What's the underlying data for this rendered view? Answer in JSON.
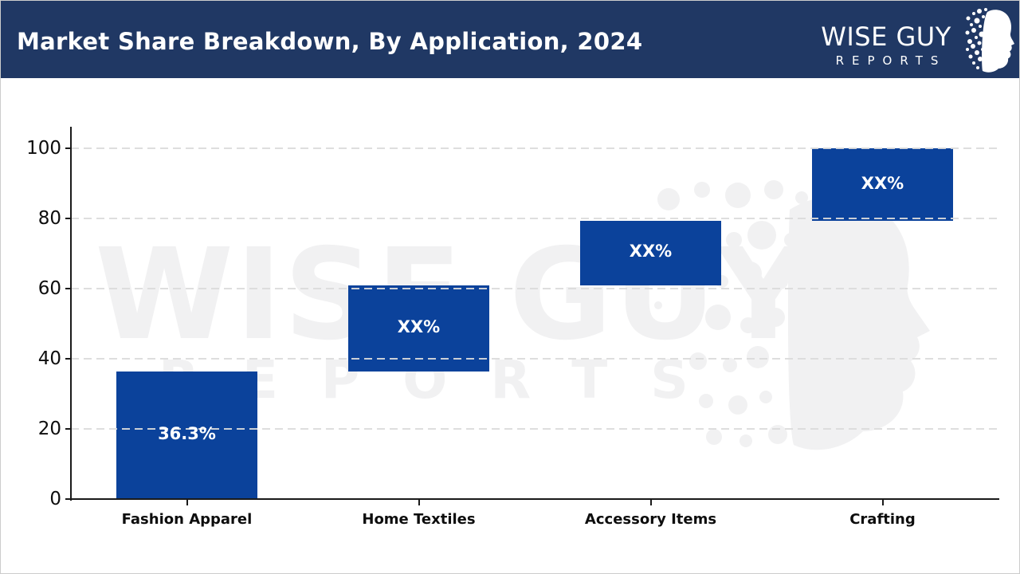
{
  "header": {
    "title": "Market Share Breakdown, By Application, 2024",
    "logo": {
      "line1": "WISE GUY",
      "line2": "REPORTS"
    }
  },
  "watermark": {
    "line1": "WISE GUY",
    "line2": "REPORTS"
  },
  "colors": {
    "header_bg": "#203864",
    "bar": "#0b429b",
    "grid": "#dbdbdb",
    "axis": "#1a1a1a",
    "tick_label": "#0d0d0d",
    "bar_label": "#ffffff",
    "watermark": "#f1f1f2",
    "logo_text": "#ffffff"
  },
  "chart_data": {
    "type": "bar",
    "subtype": "floating-waterfall",
    "title": "Market Share Breakdown, By Application, 2024",
    "categories": [
      "Fashion Apparel",
      "Home Textiles",
      "Accessory Items",
      "Crafting"
    ],
    "segments": [
      {
        "category": "Fashion Apparel",
        "start": 0,
        "end": 36.3,
        "label": "36.3%"
      },
      {
        "category": "Home Textiles",
        "start": 36.3,
        "end": 61.0,
        "label": "XX%"
      },
      {
        "category": "Accessory Items",
        "start": 61.0,
        "end": 79.3,
        "label": "XX%"
      },
      {
        "category": "Crafting",
        "start": 79.3,
        "end": 100,
        "label": "XX%"
      }
    ],
    "xlabel": "",
    "ylabel": "",
    "ylim": [
      0,
      100
    ],
    "yticks": [
      0,
      20,
      40,
      60,
      80,
      100
    ],
    "grid": "horizontal-dashed-above-bars",
    "legend": "none"
  }
}
